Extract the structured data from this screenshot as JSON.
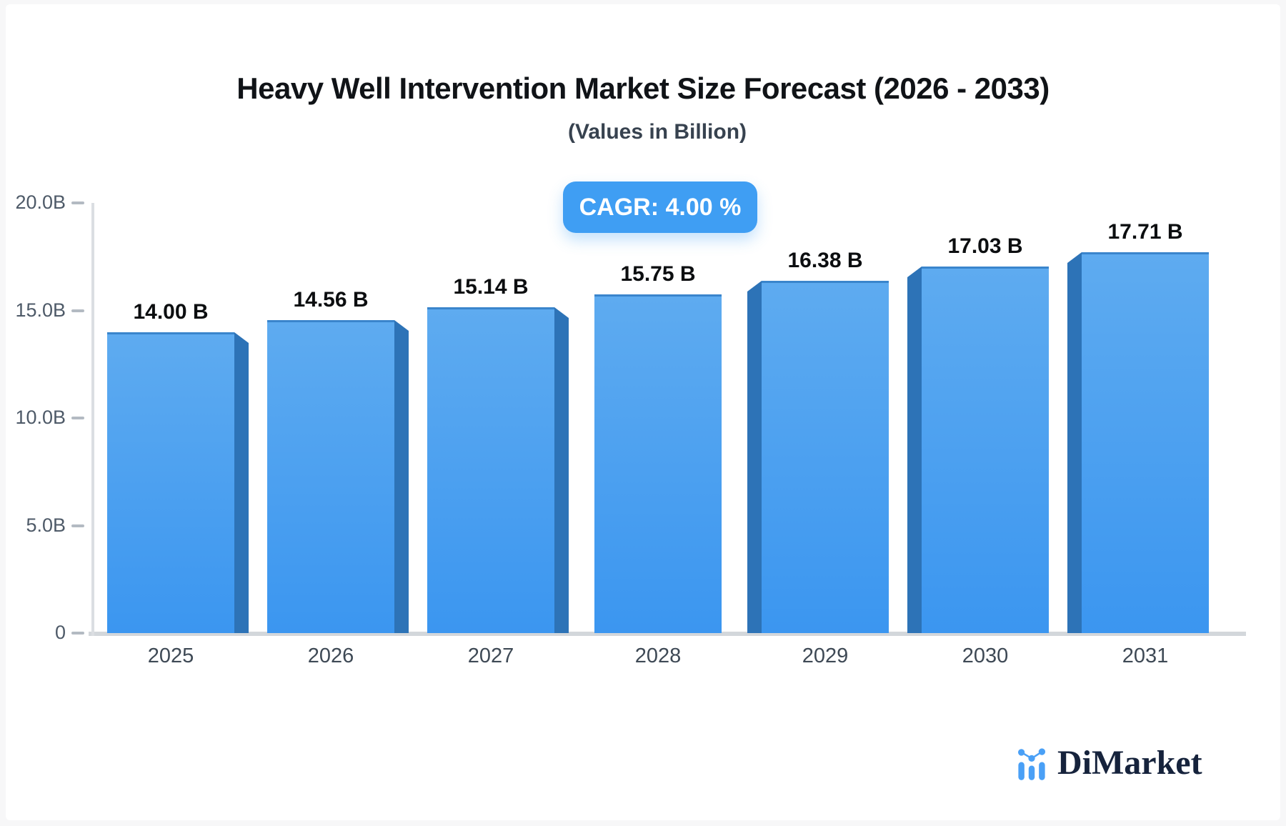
{
  "title": "Heavy Well Intervention Market Size Forecast (2026 - 2033)",
  "subtitle": "(Values in Billion)",
  "cagr_badge_label": "CAGR: 4.00 %",
  "logo": {
    "text": "DiMarket"
  },
  "colors": {
    "bar_face_top": "#5eabf0",
    "bar_face_bottom": "#3b96f0",
    "bar_top_edge": "#3a85cc",
    "bar_side": "#2d73b7",
    "badge_bg": "#3f9ef3",
    "axis_line": "#d3d7db",
    "tick_text": "#4e5a68",
    "value_text": "#0c0e10",
    "year_text": "#3e4955",
    "logo_navy": "#16233c",
    "logo_blue": "#4aa0f6"
  },
  "chart_data": {
    "type": "bar",
    "title": "Heavy Well Intervention Market Size Forecast (2026 - 2033)",
    "subtitle": "(Values in Billion)",
    "cagr_percent": 4.0,
    "unit": "Billion",
    "categories": [
      "2025",
      "2026",
      "2027",
      "2028",
      "2029",
      "2030",
      "2031"
    ],
    "values": [
      14.0,
      14.56,
      15.14,
      15.75,
      16.38,
      17.03,
      17.71
    ],
    "value_labels": [
      "14.00 B",
      "14.56 B",
      "15.14 B",
      "15.75 B",
      "16.38 B",
      "17.03 B",
      "17.71 B"
    ],
    "y_ticks": [
      {
        "label": "20.0B",
        "value": 20
      },
      {
        "label": "15.0B",
        "value": 15
      },
      {
        "label": "10.0B",
        "value": 10
      },
      {
        "label": "5.0B",
        "value": 5
      },
      {
        "label": "0",
        "value": 0
      }
    ],
    "ylim": [
      0,
      20
    ],
    "grid": false,
    "legend": false,
    "bar_style": "3d-beveled"
  }
}
